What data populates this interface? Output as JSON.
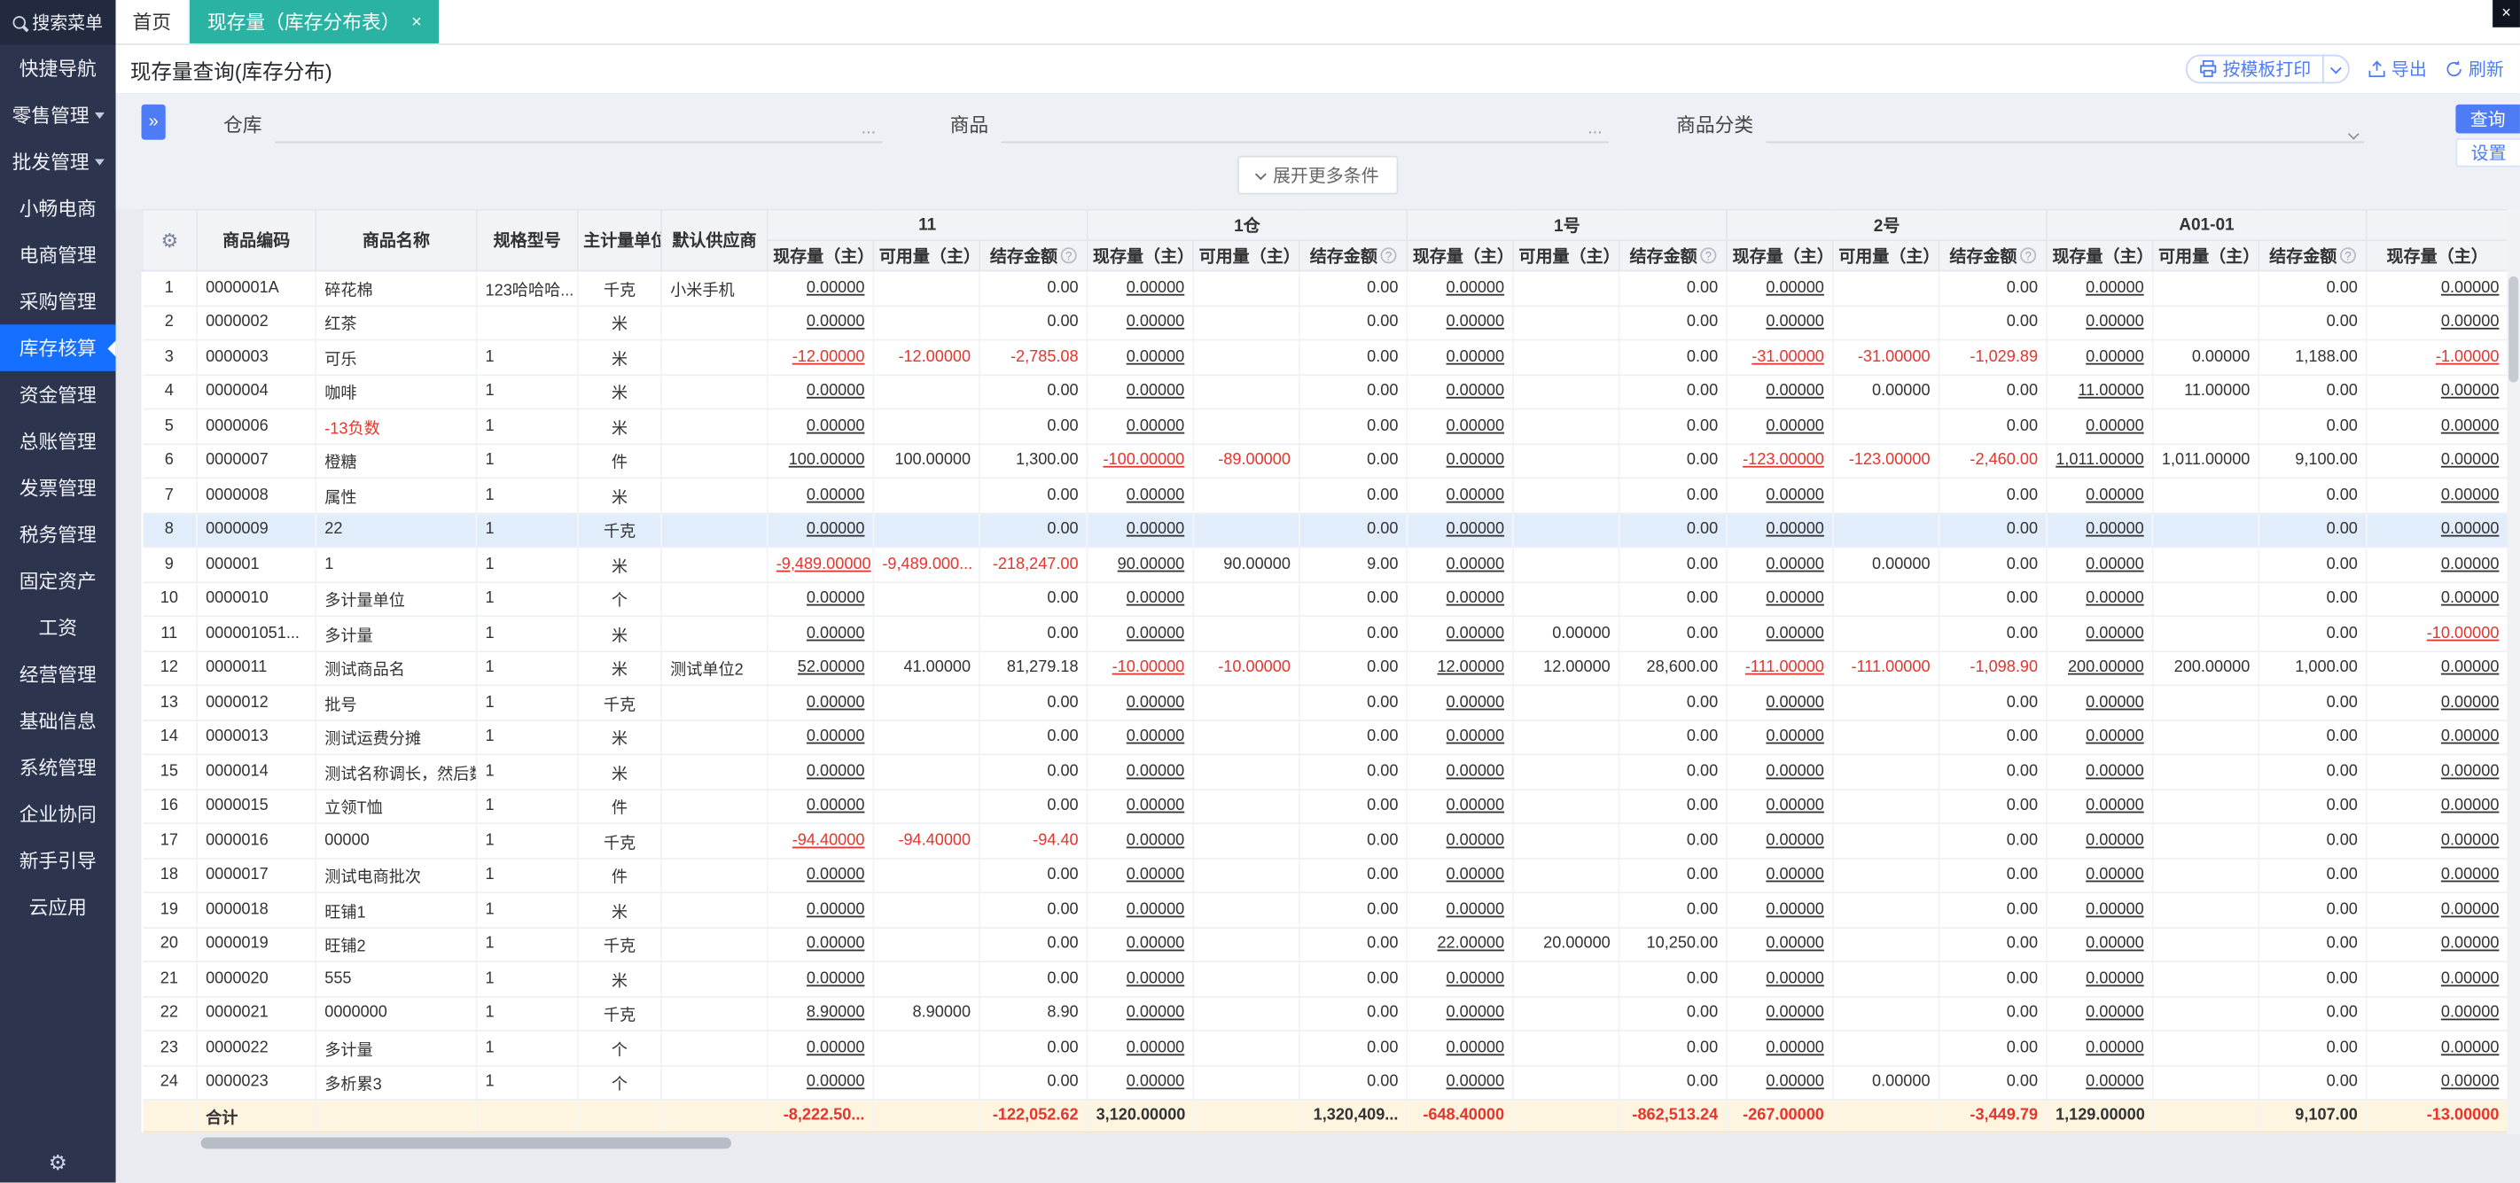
{
  "icons": {
    "close": "×",
    "gear": "⚙",
    "collapse": "»",
    "help": "?"
  },
  "sidebar": {
    "search_label": "搜索菜单",
    "items": [
      {
        "label": "快捷导航"
      },
      {
        "label": "零售管理",
        "expandable": true
      },
      {
        "label": "批发管理",
        "expandable": true
      },
      {
        "label": "小畅电商"
      },
      {
        "label": "电商管理"
      },
      {
        "label": "采购管理"
      },
      {
        "label": "库存核算",
        "active": true
      },
      {
        "label": "资金管理"
      },
      {
        "label": "总账管理"
      },
      {
        "label": "发票管理"
      },
      {
        "label": "税务管理"
      },
      {
        "label": "固定资产"
      },
      {
        "label": "工资"
      },
      {
        "label": "经营管理"
      },
      {
        "label": "基础信息"
      },
      {
        "label": "系统管理"
      },
      {
        "label": "企业协同"
      },
      {
        "label": "新手引导"
      },
      {
        "label": "云应用"
      }
    ]
  },
  "tabs": {
    "home": "首页",
    "active_label": "现存量（库存分布表）"
  },
  "page": {
    "title": "现存量查询(库存分布)"
  },
  "toolbar": {
    "print": "按模板打印",
    "export": "导出",
    "refresh": "刷新"
  },
  "filters": {
    "warehouse": "仓库",
    "goods": "商品",
    "category": "商品分类",
    "ellipsis": "...",
    "query": "查询",
    "settings": "设置",
    "expand_more": "展开更多条件"
  },
  "table": {
    "fixed_headers": [
      "商品编码",
      "商品名称",
      "规格型号",
      "主计量单位",
      "默认供应商"
    ],
    "sub_headers": [
      "现存量（主）",
      "可用量（主）",
      "结存金额"
    ],
    "groups": [
      {
        "label": "11",
        "cols": 3
      },
      {
        "label": "1仓",
        "cols": 3
      },
      {
        "label": "1号",
        "cols": 3
      },
      {
        "label": "2号",
        "cols": 3
      },
      {
        "label": "A01-01",
        "cols": 3
      },
      {
        "label": "",
        "cols": 1
      }
    ],
    "rows": [
      {
        "n": 1,
        "code": "0000001A",
        "name": "碎花棉",
        "spec": "123哈哈哈...",
        "unit": "千克",
        "sup": "小米手机",
        "v": [
          "0.00000",
          "",
          "0.00",
          "0.00000",
          "",
          "0.00",
          "0.00000",
          "",
          "0.00",
          "0.00000",
          "",
          "0.00",
          "0.00000",
          "",
          "0.00",
          "0.00000"
        ]
      },
      {
        "n": 2,
        "code": "0000002",
        "name": "红茶",
        "spec": "",
        "unit": "米",
        "sup": "",
        "v": [
          "0.00000",
          "",
          "0.00",
          "0.00000",
          "",
          "0.00",
          "0.00000",
          "",
          "0.00",
          "0.00000",
          "",
          "0.00",
          "0.00000",
          "",
          "0.00",
          "0.00000"
        ]
      },
      {
        "n": 3,
        "code": "0000003",
        "name": "可乐",
        "spec": "1",
        "unit": "米",
        "sup": "",
        "v": [
          "-12.00000",
          "-12.00000",
          "-2,785.08",
          "0.00000",
          "",
          "0.00",
          "0.00000",
          "",
          "0.00",
          "-31.00000",
          "-31.00000",
          "-1,029.89",
          "0.00000",
          "0.00000",
          "1,188.00",
          "-1.00000"
        ]
      },
      {
        "n": 4,
        "code": "0000004",
        "name": "咖啡",
        "spec": "1",
        "unit": "米",
        "sup": "",
        "v": [
          "0.00000",
          "",
          "0.00",
          "0.00000",
          "",
          "0.00",
          "0.00000",
          "",
          "0.00",
          "0.00000",
          "0.00000",
          "0.00",
          "11.00000",
          "11.00000",
          "0.00",
          "0.00000"
        ]
      },
      {
        "n": 5,
        "code": "0000006",
        "name": "-13负数",
        "spec": "1",
        "unit": "米",
        "sup": "",
        "v": [
          "0.00000",
          "",
          "0.00",
          "0.00000",
          "",
          "0.00",
          "0.00000",
          "",
          "0.00",
          "0.00000",
          "",
          "0.00",
          "0.00000",
          "",
          "0.00",
          "0.00000"
        ]
      },
      {
        "n": 6,
        "code": "0000007",
        "name": "橙糖",
        "spec": "1",
        "unit": "件",
        "sup": "",
        "v": [
          "100.00000",
          "100.00000",
          "1,300.00",
          "-100.00000",
          "-89.00000",
          "0.00",
          "0.00000",
          "",
          "0.00",
          "-123.00000",
          "-123.00000",
          "-2,460.00",
          "1,011.00000",
          "1,011.00000",
          "9,100.00",
          "0.00000"
        ]
      },
      {
        "n": 7,
        "code": "0000008",
        "name": "属性",
        "spec": "1",
        "unit": "米",
        "sup": "",
        "v": [
          "0.00000",
          "",
          "0.00",
          "0.00000",
          "",
          "0.00",
          "0.00000",
          "",
          "0.00",
          "0.00000",
          "",
          "0.00",
          "0.00000",
          "",
          "0.00",
          "0.00000"
        ]
      },
      {
        "n": 8,
        "code": "0000009",
        "name": "22",
        "spec": "1",
        "unit": "千克",
        "sup": "",
        "hl": true,
        "v": [
          "0.00000",
          "",
          "0.00",
          "0.00000",
          "",
          "0.00",
          "0.00000",
          "",
          "0.00",
          "0.00000",
          "",
          "0.00",
          "0.00000",
          "",
          "0.00",
          "0.00000"
        ]
      },
      {
        "n": 9,
        "code": "000001",
        "name": "1",
        "spec": "1",
        "unit": "米",
        "sup": "",
        "v": [
          "-9,489.00000",
          "-9,489.000...",
          "-218,247.00",
          "90.00000",
          "90.00000",
          "9.00",
          "0.00000",
          "",
          "0.00",
          "0.00000",
          "0.00000",
          "0.00",
          "0.00000",
          "",
          "0.00",
          "0.00000"
        ]
      },
      {
        "n": 10,
        "code": "0000010",
        "name": "多计量单位",
        "spec": "1",
        "unit": "个",
        "sup": "",
        "v": [
          "0.00000",
          "",
          "0.00",
          "0.00000",
          "",
          "0.00",
          "0.00000",
          "",
          "0.00",
          "0.00000",
          "",
          "0.00",
          "0.00000",
          "",
          "0.00",
          "0.00000"
        ]
      },
      {
        "n": 11,
        "code": "000001051...",
        "name": "多计量",
        "spec": "1",
        "unit": "米",
        "sup": "",
        "v": [
          "0.00000",
          "",
          "0.00",
          "0.00000",
          "",
          "0.00",
          "0.00000",
          "0.00000",
          "0.00",
          "0.00000",
          "",
          "0.00",
          "0.00000",
          "",
          "0.00",
          "-10.00000"
        ]
      },
      {
        "n": 12,
        "code": "0000011",
        "name": "测试商品名",
        "spec": "1",
        "unit": "米",
        "sup": "测试单位2",
        "v": [
          "52.00000",
          "41.00000",
          "81,279.18",
          "-10.00000",
          "-10.00000",
          "0.00",
          "12.00000",
          "12.00000",
          "28,600.00",
          "-111.00000",
          "-111.00000",
          "-1,098.90",
          "200.00000",
          "200.00000",
          "1,000.00",
          "0.00000"
        ]
      },
      {
        "n": 13,
        "code": "0000012",
        "name": "批号",
        "spec": "1",
        "unit": "千克",
        "sup": "",
        "v": [
          "0.00000",
          "",
          "0.00",
          "0.00000",
          "",
          "0.00",
          "0.00000",
          "",
          "0.00",
          "0.00000",
          "",
          "0.00",
          "0.00000",
          "",
          "0.00",
          "0.00000"
        ]
      },
      {
        "n": 14,
        "code": "0000013",
        "name": "测试运费分摊",
        "spec": "1",
        "unit": "米",
        "sup": "",
        "v": [
          "0.00000",
          "",
          "0.00",
          "0.00000",
          "",
          "0.00",
          "0.00000",
          "",
          "0.00",
          "0.00000",
          "",
          "0.00",
          "0.00000",
          "",
          "0.00",
          "0.00000"
        ]
      },
      {
        "n": 15,
        "code": "0000014",
        "name": "测试名称调长，然后数...",
        "spec": "1",
        "unit": "米",
        "sup": "",
        "v": [
          "0.00000",
          "",
          "0.00",
          "0.00000",
          "",
          "0.00",
          "0.00000",
          "",
          "0.00",
          "0.00000",
          "",
          "0.00",
          "0.00000",
          "",
          "0.00",
          "0.00000"
        ]
      },
      {
        "n": 16,
        "code": "0000015",
        "name": "立领T恤",
        "spec": "1",
        "unit": "件",
        "sup": "",
        "v": [
          "0.00000",
          "",
          "0.00",
          "0.00000",
          "",
          "0.00",
          "0.00000",
          "",
          "0.00",
          "0.00000",
          "",
          "0.00",
          "0.00000",
          "",
          "0.00",
          "0.00000"
        ]
      },
      {
        "n": 17,
        "code": "0000016",
        "name": "00000",
        "spec": "1",
        "unit": "千克",
        "sup": "",
        "v": [
          "-94.40000",
          "-94.40000",
          "-94.40",
          "0.00000",
          "",
          "0.00",
          "0.00000",
          "",
          "0.00",
          "0.00000",
          "",
          "0.00",
          "0.00000",
          "",
          "0.00",
          "0.00000"
        ]
      },
      {
        "n": 18,
        "code": "0000017",
        "name": "测试电商批次",
        "spec": "1",
        "unit": "件",
        "sup": "",
        "v": [
          "0.00000",
          "",
          "0.00",
          "0.00000",
          "",
          "0.00",
          "0.00000",
          "",
          "0.00",
          "0.00000",
          "",
          "0.00",
          "0.00000",
          "",
          "0.00",
          "0.00000"
        ]
      },
      {
        "n": 19,
        "code": "0000018",
        "name": "旺铺1",
        "spec": "1",
        "unit": "米",
        "sup": "",
        "v": [
          "0.00000",
          "",
          "0.00",
          "0.00000",
          "",
          "0.00",
          "0.00000",
          "",
          "0.00",
          "0.00000",
          "",
          "0.00",
          "0.00000",
          "",
          "0.00",
          "0.00000"
        ]
      },
      {
        "n": 20,
        "code": "0000019",
        "name": "旺铺2",
        "spec": "1",
        "unit": "千克",
        "sup": "",
        "v": [
          "0.00000",
          "",
          "0.00",
          "0.00000",
          "",
          "0.00",
          "22.00000",
          "20.00000",
          "10,250.00",
          "0.00000",
          "",
          "0.00",
          "0.00000",
          "",
          "0.00",
          "0.00000"
        ]
      },
      {
        "n": 21,
        "code": "0000020",
        "name": "555",
        "spec": "1",
        "unit": "米",
        "sup": "",
        "v": [
          "0.00000",
          "",
          "0.00",
          "0.00000",
          "",
          "0.00",
          "0.00000",
          "",
          "0.00",
          "0.00000",
          "",
          "0.00",
          "0.00000",
          "",
          "0.00",
          "0.00000"
        ]
      },
      {
        "n": 22,
        "code": "0000021",
        "name": "0000000",
        "spec": "1",
        "unit": "千克",
        "sup": "",
        "v": [
          "8.90000",
          "8.90000",
          "8.90",
          "0.00000",
          "",
          "0.00",
          "0.00000",
          "",
          "0.00",
          "0.00000",
          "",
          "0.00",
          "0.00000",
          "",
          "0.00",
          "0.00000"
        ]
      },
      {
        "n": 23,
        "code": "0000022",
        "name": "多计量",
        "spec": "1",
        "unit": "个",
        "sup": "",
        "v": [
          "0.00000",
          "",
          "0.00",
          "0.00000",
          "",
          "0.00",
          "0.00000",
          "",
          "0.00",
          "0.00000",
          "",
          "0.00",
          "0.00000",
          "",
          "0.00",
          "0.00000"
        ]
      },
      {
        "n": 24,
        "code": "0000023",
        "name": "多析累3",
        "spec": "1",
        "unit": "个",
        "sup": "",
        "v": [
          "0.00000",
          "",
          "0.00",
          "0.00000",
          "",
          "0.00",
          "0.00000",
          "",
          "0.00",
          "0.00000",
          "0.00000",
          "0.00",
          "0.00000",
          "",
          "0.00",
          "0.00000"
        ]
      }
    ],
    "footer": {
      "label": "合计",
      "values": [
        "-8,222.50...",
        "",
        "-122,052.62",
        "3,120.00000",
        "",
        "1,320,409...",
        "-648.40000",
        "",
        "-862,513.24",
        "-267.00000",
        "",
        "-3,449.79",
        "1,129.00000",
        "",
        "9,107.00",
        "-13.00000"
      ]
    }
  }
}
